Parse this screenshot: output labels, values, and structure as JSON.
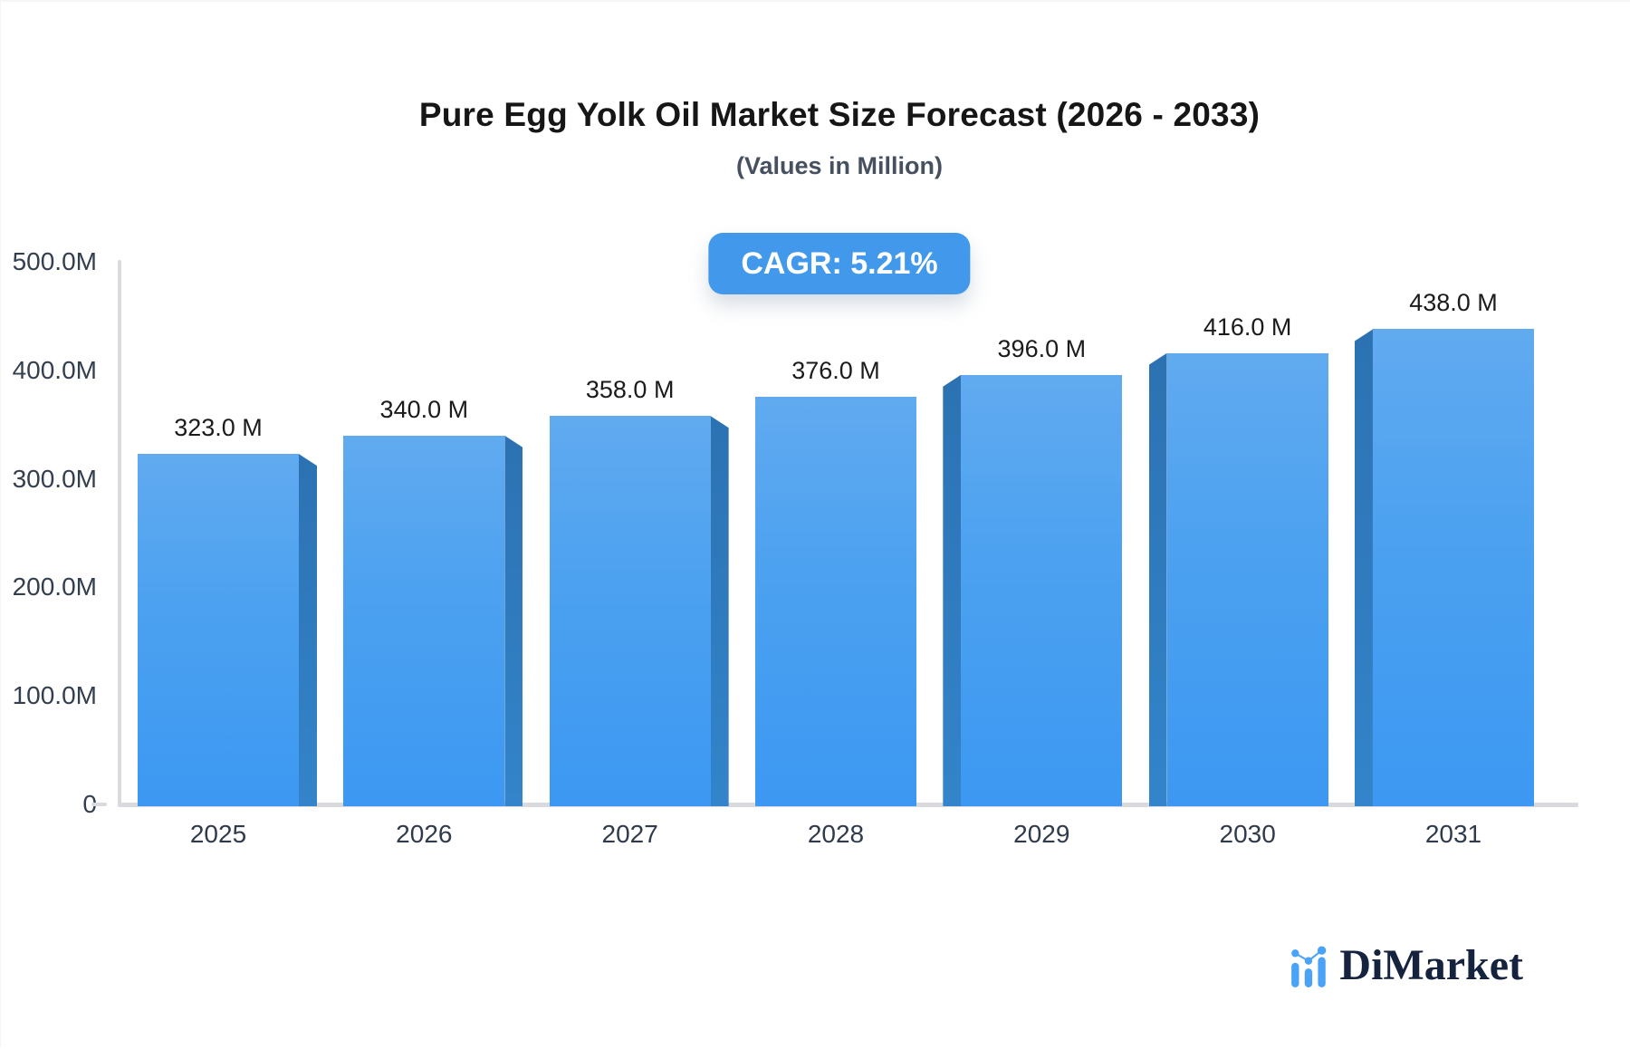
{
  "header": {
    "title": "Pure Egg Yolk Oil Market Size Forecast (2026 - 2033)",
    "subtitle": "(Values in Million)",
    "cagr_label": "CAGR: 5.21%"
  },
  "chart_data": {
    "type": "bar",
    "title": "Pure Egg Yolk Oil Market Size Forecast (2026 - 2033)",
    "subtitle": "(Values in Million)",
    "annotation": "CAGR: 5.21%",
    "categories": [
      "2025",
      "2026",
      "2027",
      "2028",
      "2029",
      "2030",
      "2031"
    ],
    "values": [
      323,
      340,
      358,
      376,
      396,
      416,
      438
    ],
    "bar_labels": [
      "323.0 M",
      "340.0 M",
      "358.0 M",
      "376.0 M",
      "396.0 M",
      "416.0 M",
      "438.0 M"
    ],
    "yticks": [
      {
        "value": 0,
        "label": "0"
      },
      {
        "value": 100,
        "label": "100.0M"
      },
      {
        "value": 200,
        "label": "200.0M"
      },
      {
        "value": 300,
        "label": "300.0M"
      },
      {
        "value": 400,
        "label": "400.0M"
      },
      {
        "value": 500,
        "label": "500.0M"
      }
    ],
    "ylim": [
      0,
      500
    ],
    "xlabel": "",
    "ylabel": "",
    "grid": false,
    "legend": false,
    "bar_style": "pseudo-3d, dark side faces chart center"
  },
  "colors": {
    "bar_face_top": "#61aaf0",
    "bar_face_bottom": "#3c98f2",
    "bar_side": "#2e79bd",
    "badge_background": "#4299eb",
    "axis": "#d8dadd",
    "title_text": "#161616",
    "subtitle_text": "#46505f",
    "tick_text": "#333e4e"
  },
  "branding": {
    "logo_text": "DiMarket",
    "logo_icon": "mini-bar-chart-icon"
  }
}
